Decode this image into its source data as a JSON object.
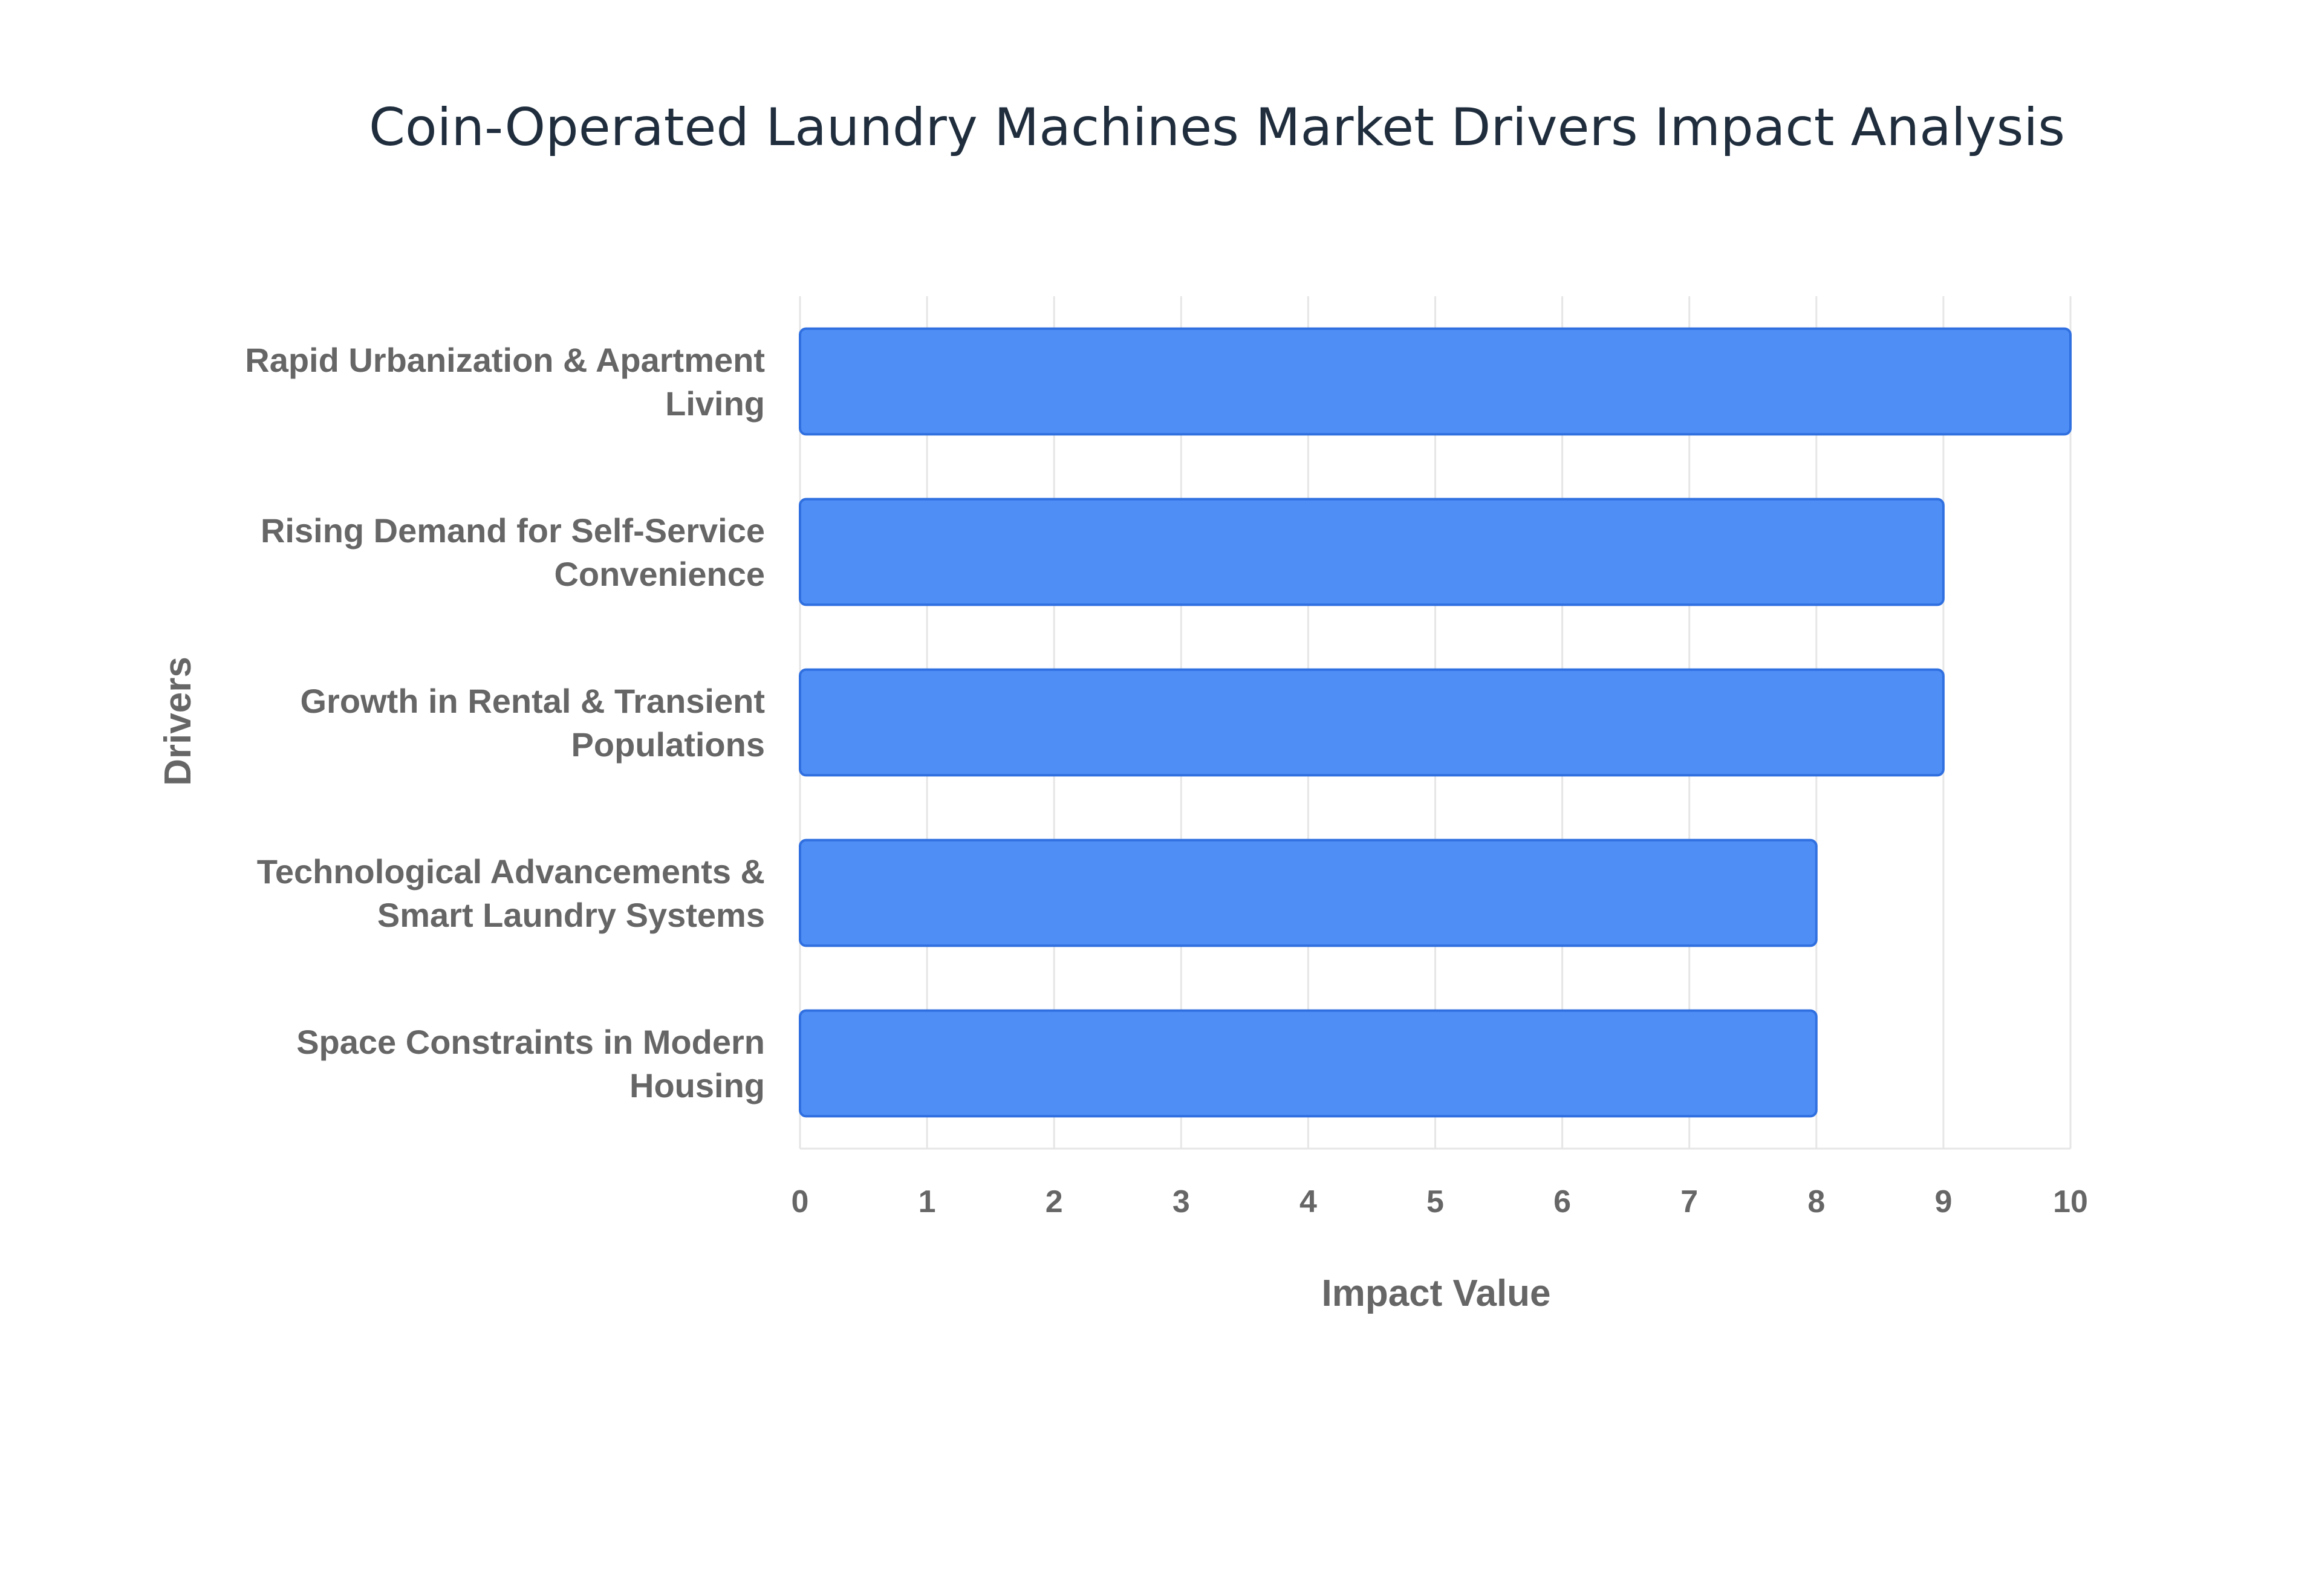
{
  "chart_data": {
    "type": "bar",
    "orientation": "horizontal",
    "title": "Coin-Operated Laundry Machines Market Drivers Impact Analysis",
    "xlabel": "Impact Value",
    "ylabel": "Drivers",
    "categories": [
      [
        "Rapid Urbanization & Apartment",
        "Living"
      ],
      [
        "Rising Demand for Self-Service",
        "Convenience"
      ],
      [
        "Growth in Rental & Transient",
        "Populations"
      ],
      [
        "Technological Advancements &",
        "Smart Laundry Systems"
      ],
      [
        "Space Constraints in Modern",
        "Housing"
      ]
    ],
    "values": [
      10,
      9,
      9,
      8,
      8
    ],
    "xlim": [
      0,
      10
    ],
    "xticks": [
      0,
      1,
      2,
      3,
      4,
      5,
      6,
      7,
      8,
      9,
      10
    ],
    "grid": true,
    "bar_color": "#4f8ef5",
    "bar_outline": "#2f6fe0"
  }
}
